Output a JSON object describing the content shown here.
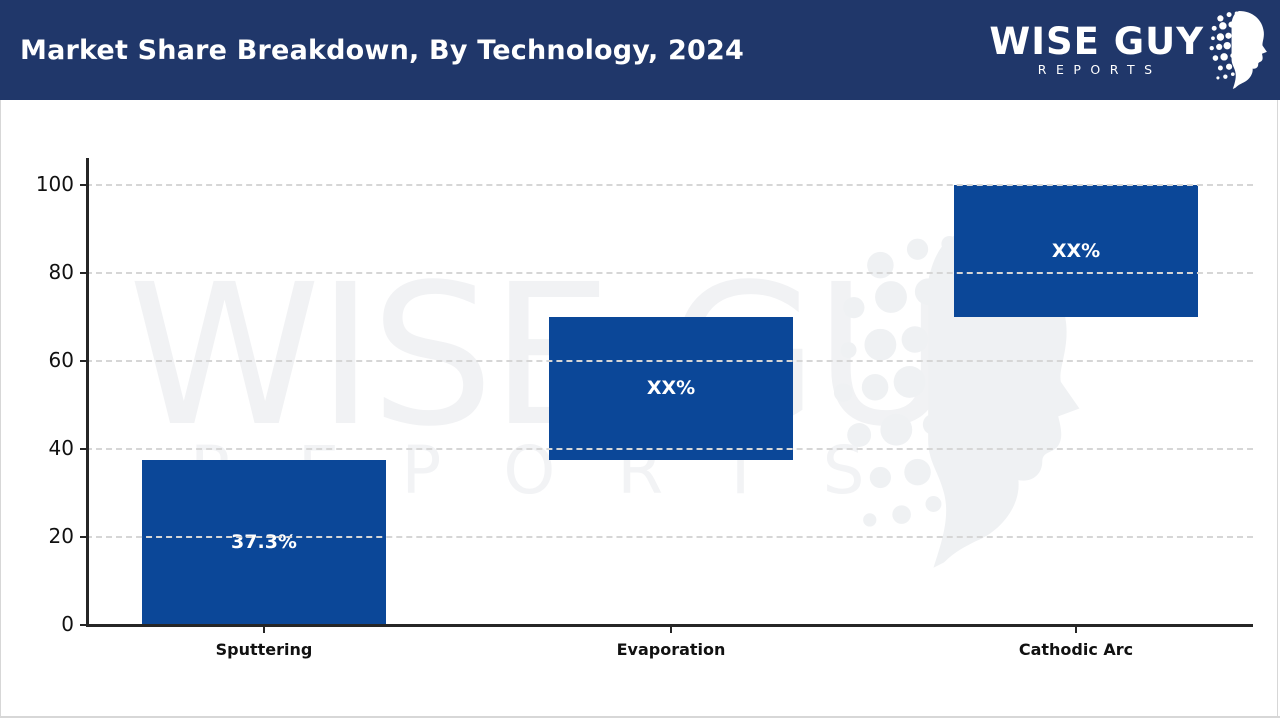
{
  "header": {
    "title": "Market Share Breakdown, By Technology, 2024",
    "background": "#20376a",
    "logo": {
      "line1": "WISE GUY",
      "line2": "REPORTS"
    }
  },
  "watermark": {
    "line1": "WISE GUY",
    "line2": "REPORTS"
  },
  "chart_data": {
    "type": "bar",
    "subtype": "floating-waterfall",
    "title": "Market Share Breakdown, By Technology, 2024",
    "categories": [
      "Sputtering",
      "Evaporation",
      "Cathodic Arc"
    ],
    "segments": [
      {
        "category": "Sputtering",
        "start": 0,
        "end": 37.3,
        "label": "37.3%"
      },
      {
        "category": "Evaporation",
        "start": 37.3,
        "end": 70,
        "label": "XX%"
      },
      {
        "category": "Cathodic Arc",
        "start": 70,
        "end": 100,
        "label": "XX%"
      }
    ],
    "yticks": [
      0,
      20,
      40,
      60,
      80,
      100
    ],
    "ylim": [
      0,
      100
    ],
    "xlabel": "",
    "ylabel": "",
    "grid": "horizontal-dashed",
    "legend": "none",
    "bar_color": "#0b4798",
    "bar_label_color": "#ffffff"
  }
}
